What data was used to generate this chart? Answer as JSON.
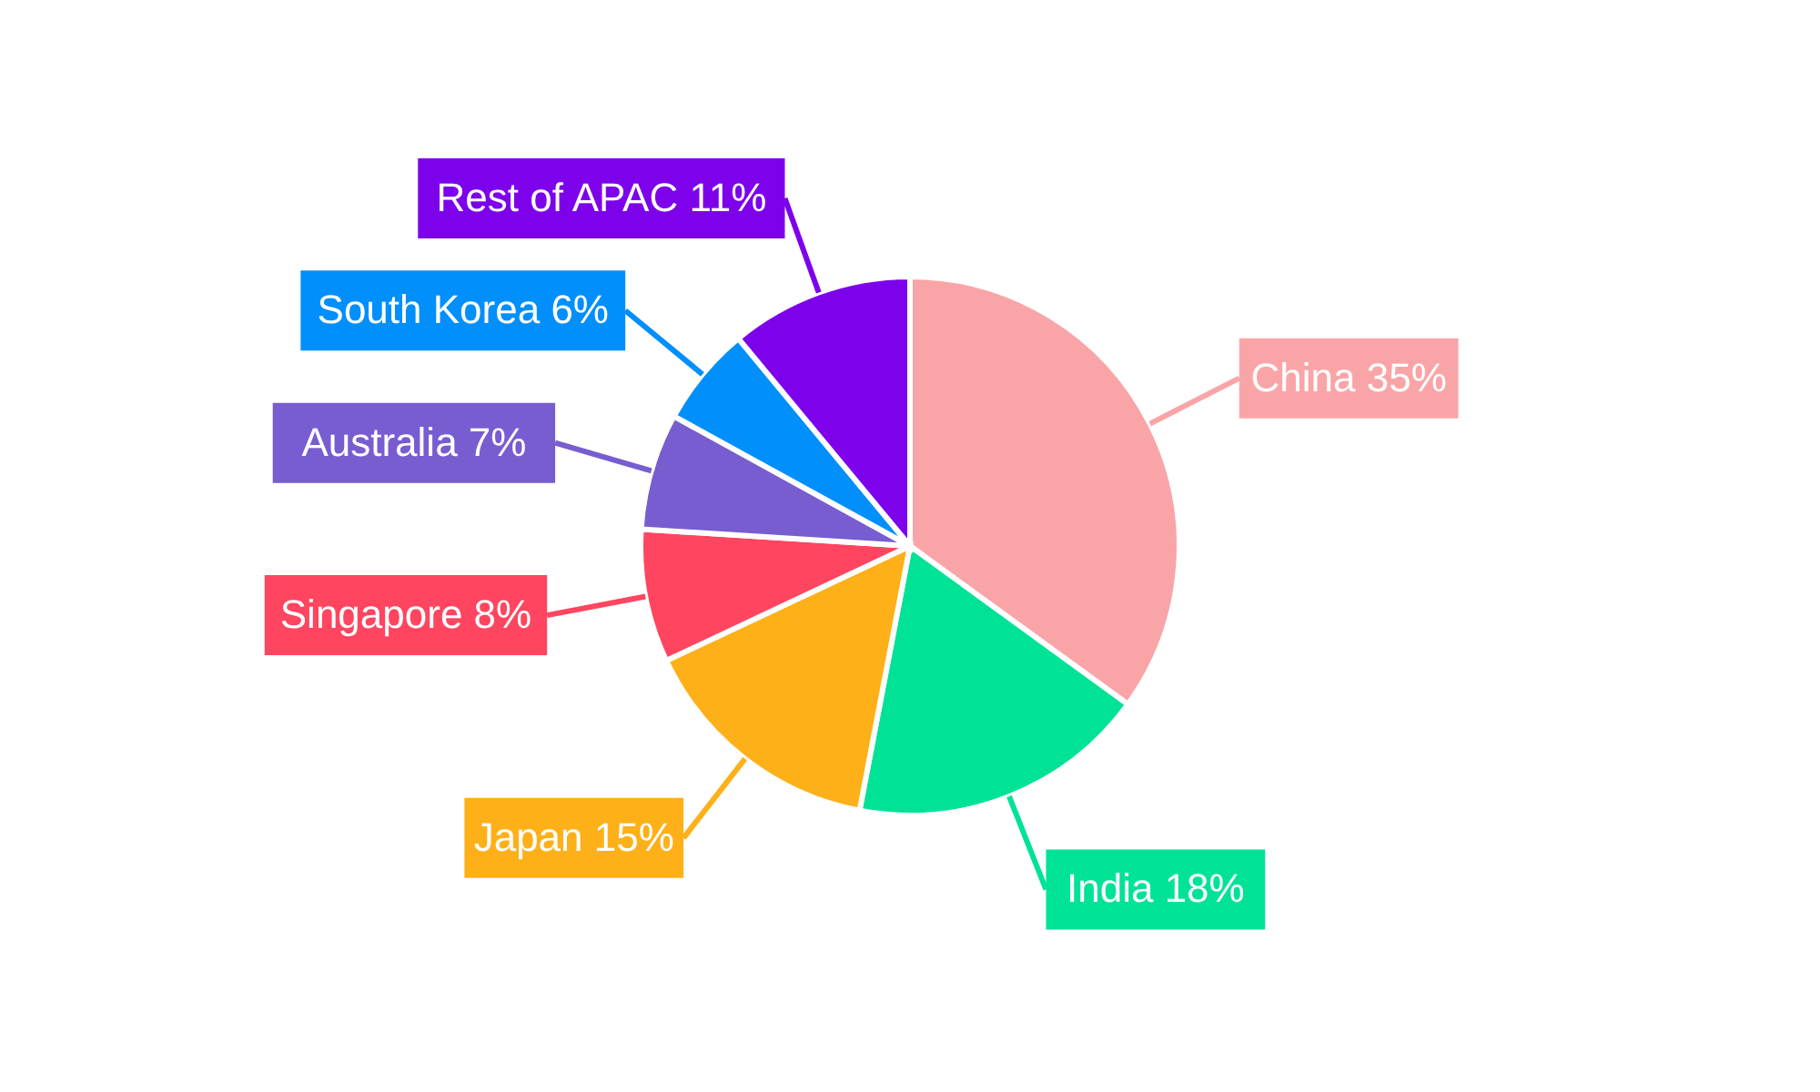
{
  "chart_data": {
    "type": "pie",
    "categories": [
      "China",
      "India",
      "Japan",
      "Singapore",
      "Australia",
      "South Korea",
      "Rest of APAC"
    ],
    "values": [
      35,
      18,
      15,
      8,
      7,
      6,
      11
    ],
    "value_labels": [
      "35%",
      "18%",
      "15%",
      "8%",
      "7%",
      "6%",
      "11%"
    ],
    "colors": [
      "#f9a5a8",
      "#00e396",
      "#feb019",
      "#ff4560",
      "#775dd0",
      "#008ffb",
      "#7d02eb"
    ]
  }
}
